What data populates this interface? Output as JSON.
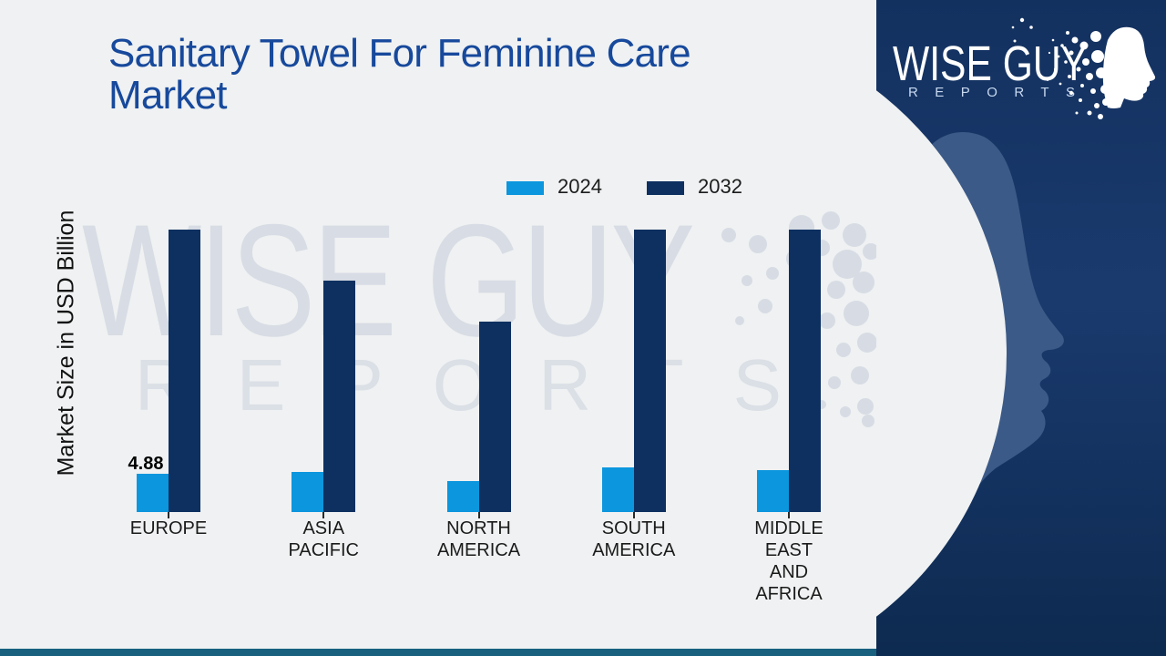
{
  "title": "Sanitary Towel For Feminine Care Market",
  "y_axis_label": "Market Size in USD Billion",
  "legend": [
    {
      "label": "2024",
      "color": "#0b96de"
    },
    {
      "label": "2032",
      "color": "#0d3060"
    }
  ],
  "logo": {
    "brand": "WISE GUY",
    "sub": "REPORTS"
  },
  "watermark": {
    "brand": "WISE GUY",
    "sub": "REPORTS"
  },
  "colors": {
    "background": "#eff1f2",
    "title_blue": "#17499c",
    "bar_2024": "#0b96de",
    "bar_2032": "#0d3060",
    "panel_navy": "#13305c",
    "face_blue": "#3c5a87",
    "bottom_teal": "#19607f",
    "watermark_gray": "#d8dce4",
    "label_text": "#1b1b1b"
  },
  "chart_data": {
    "type": "bar",
    "title": "Sanitary Towel For Feminine Care Market",
    "ylabel": "Market Size in USD Billion",
    "categories": [
      "EUROPE",
      "ASIA PACIFIC",
      "NORTH AMERICA",
      "SOUTH AMERICA",
      "MIDDLE EAST AND AFRICA"
    ],
    "categories_lines": [
      [
        "EUROPE"
      ],
      [
        "ASIA",
        "PACIFIC"
      ],
      [
        "NORTH",
        "AMERICA"
      ],
      [
        "SOUTH",
        "AMERICA"
      ],
      [
        "MIDDLE",
        "EAST",
        "AND",
        "AFRICA"
      ]
    ],
    "series": [
      {
        "name": "2024",
        "color": "#0b96de",
        "values": [
          4.88,
          5.1,
          4.0,
          5.7,
          5.3
        ]
      },
      {
        "name": "2032",
        "color": "#0d3060",
        "values": [
          36.0,
          29.5,
          24.3,
          36.0,
          36.0
        ]
      }
    ],
    "data_labels": [
      {
        "series": "2024",
        "category_index": 0,
        "text": "4.88"
      }
    ],
    "ylim": [
      0,
      40
    ],
    "grid": false,
    "legend_position": "top"
  }
}
